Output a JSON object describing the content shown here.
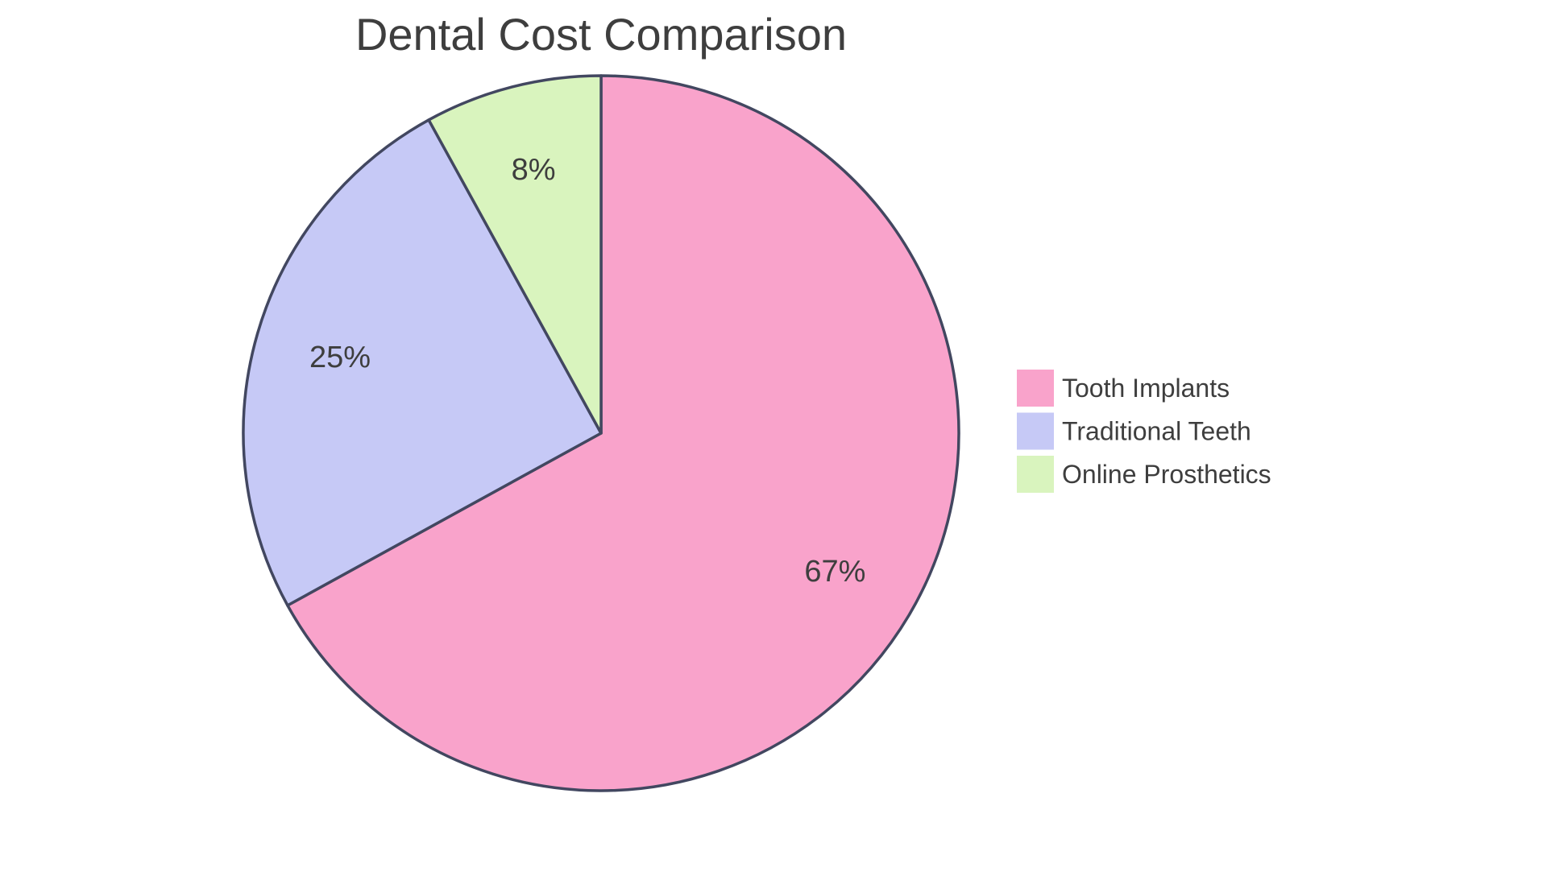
{
  "chart_data": {
    "type": "pie",
    "title": "Dental Cost Comparison",
    "labels": [
      "Tooth Implants",
      "Traditional Teeth",
      "Online Prosthetics"
    ],
    "values": [
      67,
      25,
      8
    ],
    "percent_labels": [
      "67%",
      "25%",
      "8%"
    ],
    "colors": [
      "#F9A3CB",
      "#C6C9F6",
      "#D9F4BE"
    ],
    "start_angle": "top",
    "direction": "clockwise",
    "value_label_position": "inside",
    "legend_position": "right",
    "background_color": "#ffffff",
    "outline_color": "#424760",
    "text_color": "#3e3e3e"
  }
}
